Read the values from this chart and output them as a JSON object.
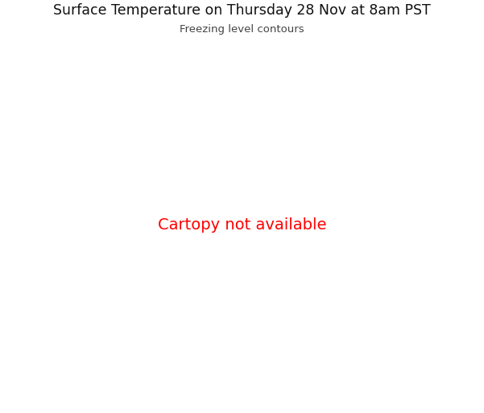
{
  "title": "Surface Temperature on Thursday 28 Nov at 8am PST",
  "subtitle": "Freezing level contours",
  "title_fontsize": 12.5,
  "subtitle_fontsize": 9.5,
  "figsize": [
    6.01,
    5.13
  ],
  "dpi": 100,
  "background_color": "#ffffff",
  "ocean_color": "#c5d8e8",
  "land_base_color": "#c8781a",
  "border_color": "#333333",
  "contour_color": "#cc0000",
  "contour_lw": 1.0,
  "lon_min": 100.5,
  "lon_max": 129.5,
  "lat_min": 0.5,
  "lat_max": 27.5,
  "grid_color": "#b0c4d8",
  "grid_alpha": 0.6,
  "grid_lw": 0.4
}
